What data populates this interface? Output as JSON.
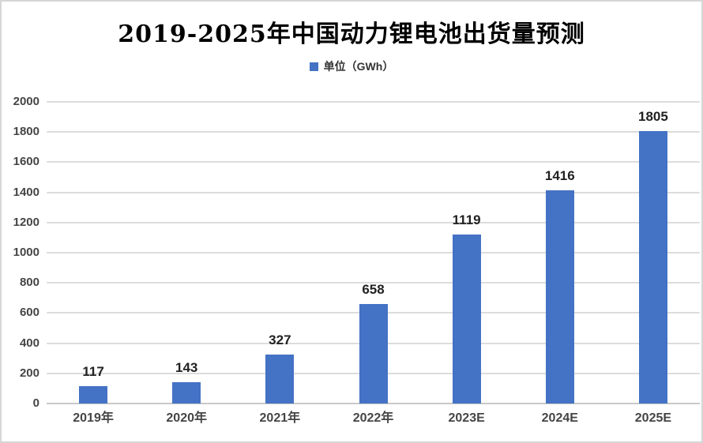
{
  "title": "2019-2025年中国动力锂电池出货量预测",
  "legend": {
    "label": "单位（GWh）",
    "marker_color": "#4472C4"
  },
  "chart_data": {
    "type": "bar",
    "title": "2019-2025年中国动力锂电池出货量预测",
    "categories": [
      "2019年",
      "2020年",
      "2021年",
      "2022年",
      "2023E",
      "2024E",
      "2025E"
    ],
    "values": [
      117,
      143,
      327,
      658,
      1119,
      1416,
      1805
    ],
    "series_name": "单位（GWh）",
    "xlabel": "",
    "ylabel": "",
    "ylim": [
      0,
      2000
    ],
    "ytick_step": 200,
    "yticks": [
      0,
      200,
      400,
      600,
      800,
      1000,
      1200,
      1400,
      1600,
      1800,
      2000
    ],
    "grid": true,
    "legend_position": "top",
    "bar_color": "#4472C4",
    "gridline_color": "#dcdcdc",
    "axis_line_color": "#c8c8c8",
    "tick_label_color": "#454545",
    "value_label_color": "#212121"
  }
}
